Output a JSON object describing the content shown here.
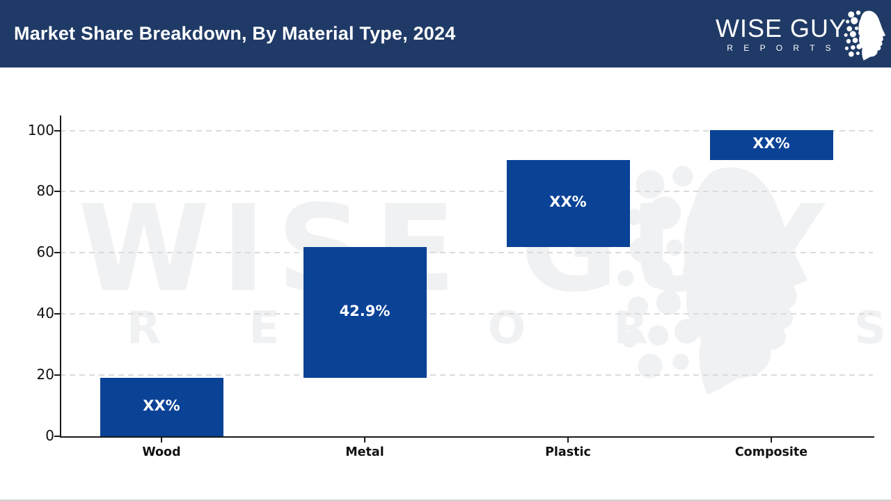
{
  "header": {
    "title": "Market Share Breakdown, By Material Type, 2024",
    "logo": {
      "line1": "WISE GUY",
      "line2": "R E P O R T S"
    }
  },
  "watermark": {
    "line1": "WISE GUY",
    "line2": "R E P O R T S"
  },
  "colors": {
    "header_bg": "#1f3a66",
    "bar": "#0a4296",
    "bar_label": "#ffffff",
    "grid": "#dbdbdb",
    "axis": "#1a1a1a",
    "tick_label": "#111111",
    "watermark": "#f0f1f3",
    "background": "#ffffff"
  },
  "chart_data": {
    "type": "bar",
    "subtype": "waterfall-breakdown",
    "title": "Market Share Breakdown, By Material Type, 2024",
    "categories": [
      "Wood",
      "Metal",
      "Plastic",
      "Composite"
    ],
    "series": [
      {
        "name": "Market share (%)",
        "segments": [
          {
            "category": "Wood",
            "start": 0,
            "end": 19.1,
            "value_label": "XX%"
          },
          {
            "category": "Metal",
            "start": 19.1,
            "end": 62.0,
            "value_label": "42.9%"
          },
          {
            "category": "Plastic",
            "start": 62.0,
            "end": 90.4,
            "value_label": "XX%"
          },
          {
            "category": "Composite",
            "start": 90.4,
            "end": 100.2,
            "value_label": "XX%"
          }
        ]
      }
    ],
    "xlabel": "",
    "ylabel": "",
    "ylim": [
      0,
      104
    ],
    "yticks": [
      0,
      20,
      40,
      60,
      80,
      100
    ],
    "grid": "dashed-horizontal",
    "legend": "none"
  }
}
